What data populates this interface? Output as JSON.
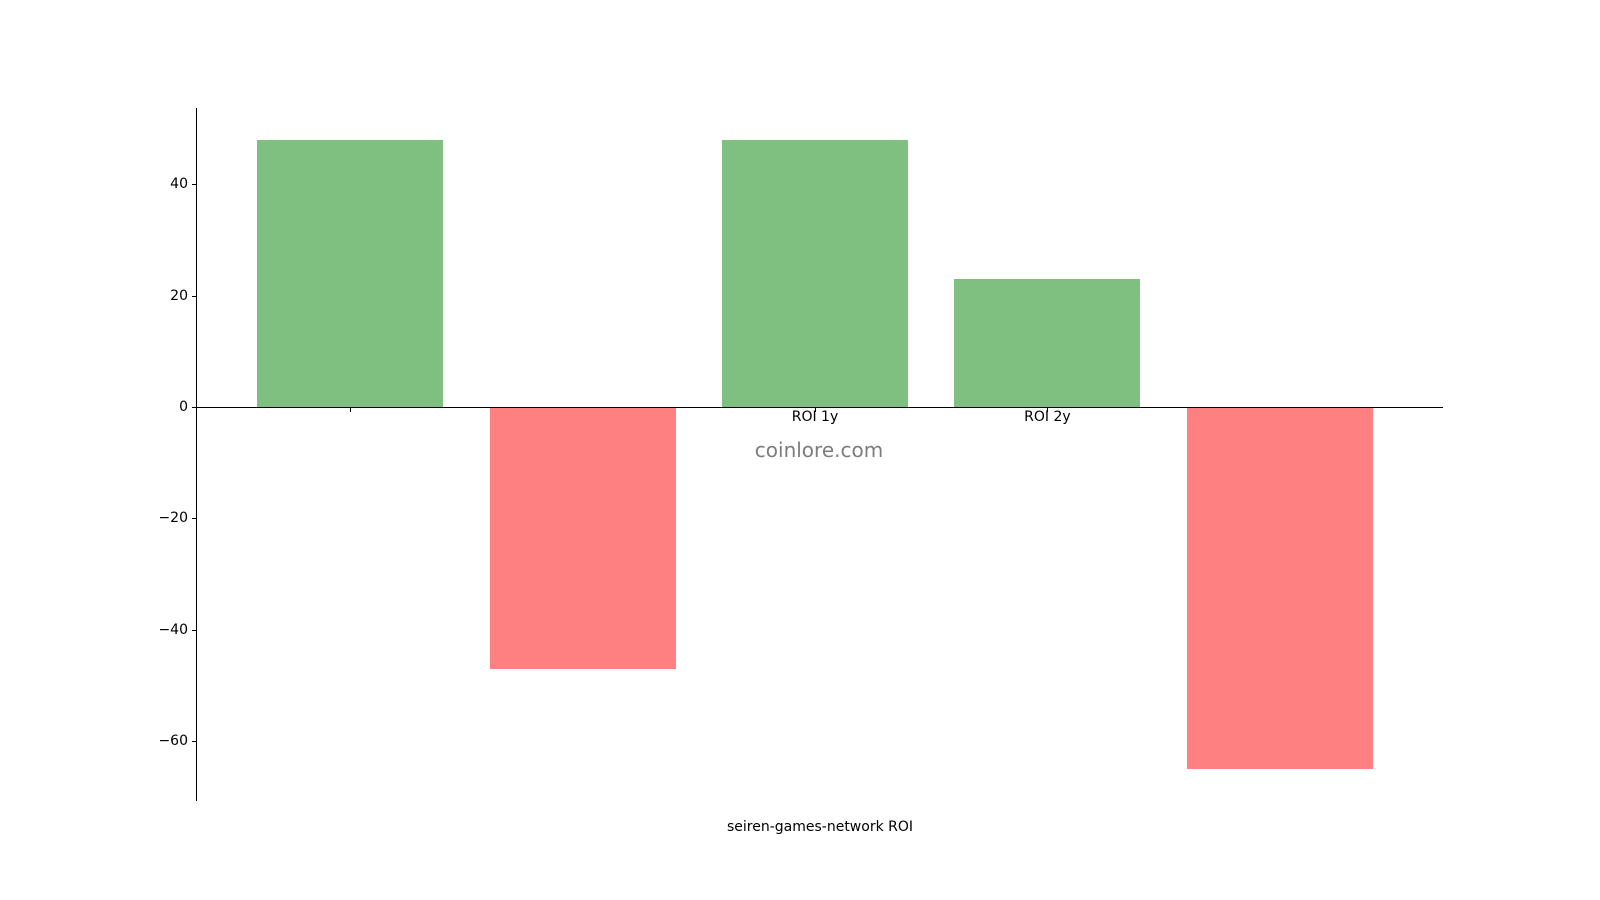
{
  "watermark": "coinlore.com",
  "chart_data": {
    "type": "bar",
    "title": "seiren-games-network ROI",
    "categories": [
      "",
      "",
      "ROI 1y",
      "ROI 2y",
      ""
    ],
    "values": [
      48,
      -47,
      48,
      23,
      -65
    ],
    "series": [
      {
        "name": "ROI",
        "values": [
          48,
          -47,
          48,
          23,
          -65
        ]
      }
    ],
    "ytick_values": [
      40,
      20,
      0,
      -20,
      -40,
      -60
    ],
    "ytick_labels": [
      "40",
      "20",
      "0",
      "−20",
      "−40",
      "−60"
    ],
    "ylim": [
      -70.7,
      53.7
    ],
    "xlabel": "",
    "ylabel": "",
    "grid": false,
    "legend_position": "none",
    "colors": {
      "positive": "#7fbf7f",
      "negative": "#ff8080",
      "axis": "#000000",
      "watermark": "#7d7d7d",
      "text": "#000000"
    }
  }
}
